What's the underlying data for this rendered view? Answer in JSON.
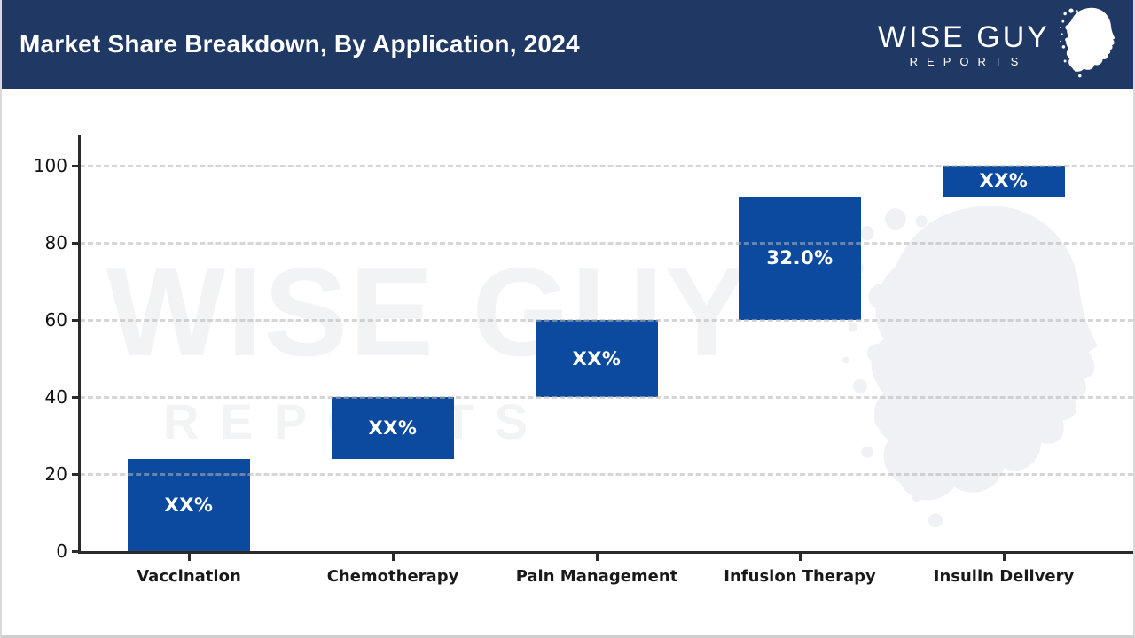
{
  "page": {
    "background": "#ffffff",
    "border_color": "#d9d9d9"
  },
  "header": {
    "title": "Market Share Breakdown, By Application, 2024",
    "background_color": "#1f3864",
    "text_color": "#ffffff",
    "logo": {
      "brand_line1": "WISE GUY",
      "brand_line2": "REPORTS"
    }
  },
  "watermark": {
    "line1": "WISE GUY",
    "line2": "R E P O R T S",
    "color": "#f2f3f5"
  },
  "chart_data": {
    "type": "bar",
    "subtype": "floating-waterfall",
    "title": "Market Share Breakdown, By Application, 2024",
    "categories": [
      "Vaccination",
      "Chemotherapy",
      "Pain Management",
      "Infusion Therapy",
      "Insulin Delivery"
    ],
    "series": [
      {
        "name": "Market share (%)",
        "segments": [
          {
            "category": "Vaccination",
            "start": 0,
            "end": 24,
            "value": 24,
            "label": "XX%"
          },
          {
            "category": "Chemotherapy",
            "start": 24,
            "end": 40,
            "value": 16,
            "label": "XX%"
          },
          {
            "category": "Pain Management",
            "start": 40,
            "end": 60,
            "value": 20,
            "label": "XX%"
          },
          {
            "category": "Infusion Therapy",
            "start": 60,
            "end": 92,
            "value": 32,
            "label": "32.0%"
          },
          {
            "category": "Insulin Delivery",
            "start": 92,
            "end": 100,
            "value": 8,
            "label": "XX%"
          }
        ]
      }
    ],
    "bar_color": "#0c4aa0",
    "bar_label_color": "#ffffff",
    "yticks": [
      0,
      20,
      40,
      60,
      80,
      100
    ],
    "ylim": [
      0,
      105
    ],
    "xlabel": "",
    "ylabel": "",
    "grid": {
      "horizontal": true,
      "style": "dashed",
      "color": "#d9d9d9"
    },
    "legend": "none"
  }
}
